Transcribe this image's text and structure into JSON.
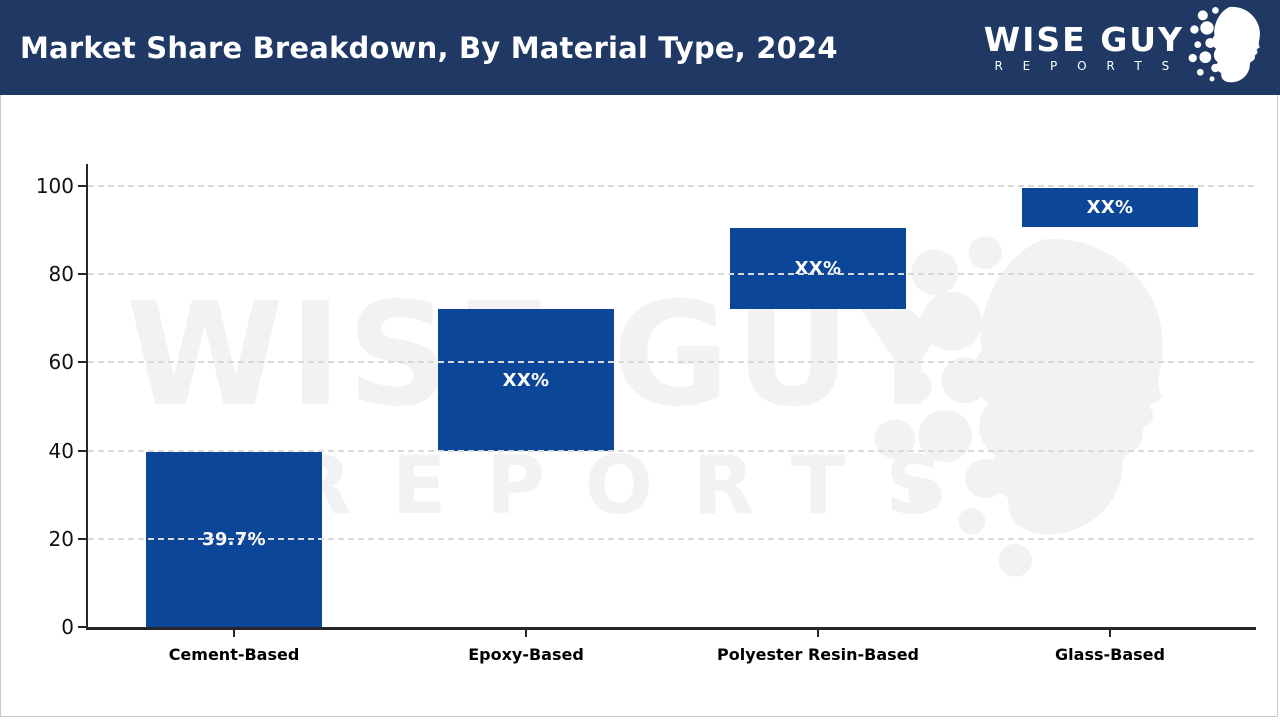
{
  "header": {
    "title": "Market Share Breakdown, By Material Type, 2024",
    "logo": {
      "line1": "WISE GUY",
      "line2": "R E P O R T S"
    }
  },
  "watermark": {
    "line1": "WISE GUY",
    "line2": "REPORTS"
  },
  "chart_data": {
    "type": "bar",
    "subtype": "waterfall",
    "title": "Market Share Breakdown, By Material Type, 2024",
    "categories": [
      "Cement-Based",
      "Epoxy-Based",
      "Polyester Resin-Based",
      "Glass-Based"
    ],
    "segments": [
      {
        "category": "Cement-Based",
        "label": "39.7%",
        "start": 0,
        "end": 39.7
      },
      {
        "category": "Epoxy-Based",
        "label": "XX%",
        "start": 39.9,
        "end": 72.1
      },
      {
        "category": "Polyester Resin-Based",
        "label": "XX%",
        "start": 72.2,
        "end": 90.5
      },
      {
        "category": "Glass-Based",
        "label": "XX%",
        "start": 90.6,
        "end": 99.6
      }
    ],
    "xlabel": "",
    "ylabel": "",
    "yticks": [
      0,
      20,
      40,
      60,
      80,
      100
    ],
    "ylim": [
      0,
      105
    ],
    "grid": {
      "show": true,
      "style": "dashed",
      "color": "#d9d9d9"
    },
    "legend": "none",
    "bar_color": "#0c4699",
    "bar_label_color": "#ffffff",
    "axis_color": "#262626",
    "header_color": "#1f3864"
  }
}
